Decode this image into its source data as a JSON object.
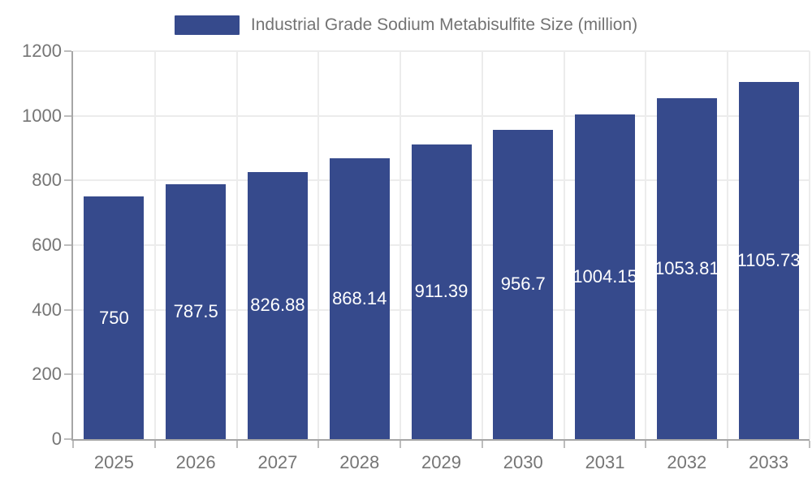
{
  "legend": {
    "label": "Industrial Grade Sodium Metabisulfite Size (million)"
  },
  "chart_data": {
    "type": "bar",
    "title": "Industrial Grade Sodium Metabisulfite Size (million)",
    "categories": [
      "2025",
      "2026",
      "2027",
      "2028",
      "2029",
      "2030",
      "2031",
      "2032",
      "2033"
    ],
    "values": [
      750,
      787.5,
      826.88,
      868.14,
      911.39,
      956.7,
      1004.15,
      1053.81,
      1105.73
    ],
    "value_labels": [
      "750",
      "787.5",
      "826.88",
      "868.14",
      "911.39",
      "956.7",
      "1004.15",
      "1053.81",
      "1105.73"
    ],
    "xlabel": "",
    "ylabel": "",
    "ylim": [
      0,
      1200
    ],
    "yticks": [
      0,
      200,
      400,
      600,
      800,
      1000,
      1200
    ],
    "grid": true,
    "legend_position": "top",
    "bar_color": "#364A8C",
    "value_label_color": "#ffffff",
    "axis_line_color": "#a6a6a6",
    "grid_line_color": "#ececec",
    "tick_label_color": "#757575",
    "legend_text_color": "#737373"
  }
}
